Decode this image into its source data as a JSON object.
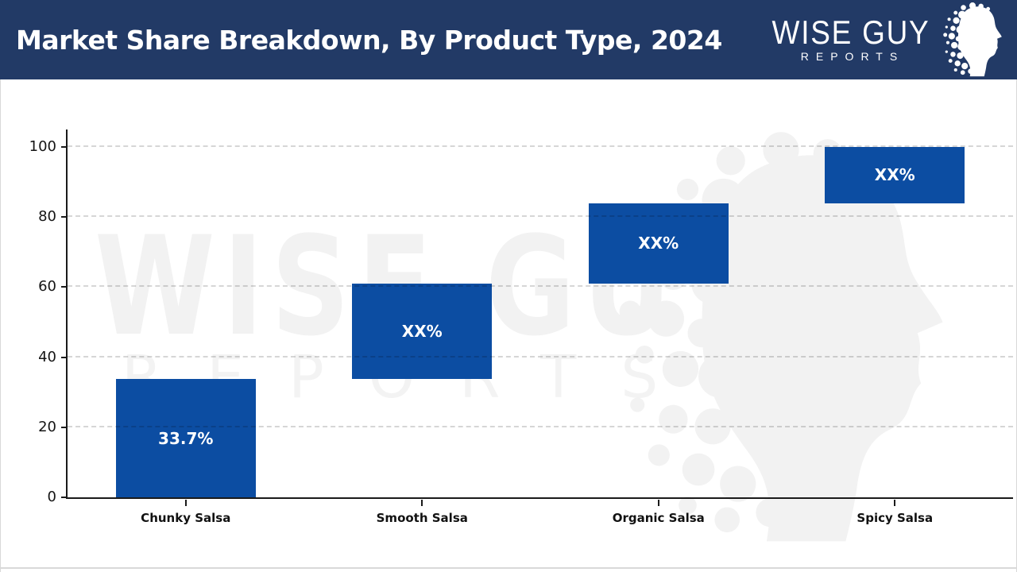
{
  "header": {
    "title": "Market Share Breakdown, By Product Type, 2024",
    "logo_line1": "WISE GUY",
    "logo_line2": "REPORTS",
    "bg_color": "#223A66"
  },
  "watermark": {
    "line1": "WISE GUY",
    "line2": "REPORTS"
  },
  "chart_data": {
    "type": "bar",
    "subtype": "waterfall-floating",
    "title": "Market Share Breakdown, By Product Type, 2024",
    "categories": [
      "Chunky Salsa",
      "Smooth Salsa",
      "Organic Salsa",
      "Spicy Salsa"
    ],
    "segments": [
      {
        "category": "Chunky Salsa",
        "start": 0,
        "end": 33.7,
        "label": "33.7%"
      },
      {
        "category": "Smooth Salsa",
        "start": 33.7,
        "end": 61,
        "label": "XX%"
      },
      {
        "category": "Organic Salsa",
        "start": 61,
        "end": 84,
        "label": "XX%"
      },
      {
        "category": "Spicy Salsa",
        "start": 84,
        "end": 100,
        "label": "XX%"
      }
    ],
    "yticks": [
      0,
      20,
      40,
      60,
      80,
      100
    ],
    "ylim": [
      0,
      105
    ],
    "xlabel": "",
    "ylabel": "",
    "bar_color": "#0C4DA2",
    "grid": "horizontal-dashed",
    "legend": "none"
  }
}
